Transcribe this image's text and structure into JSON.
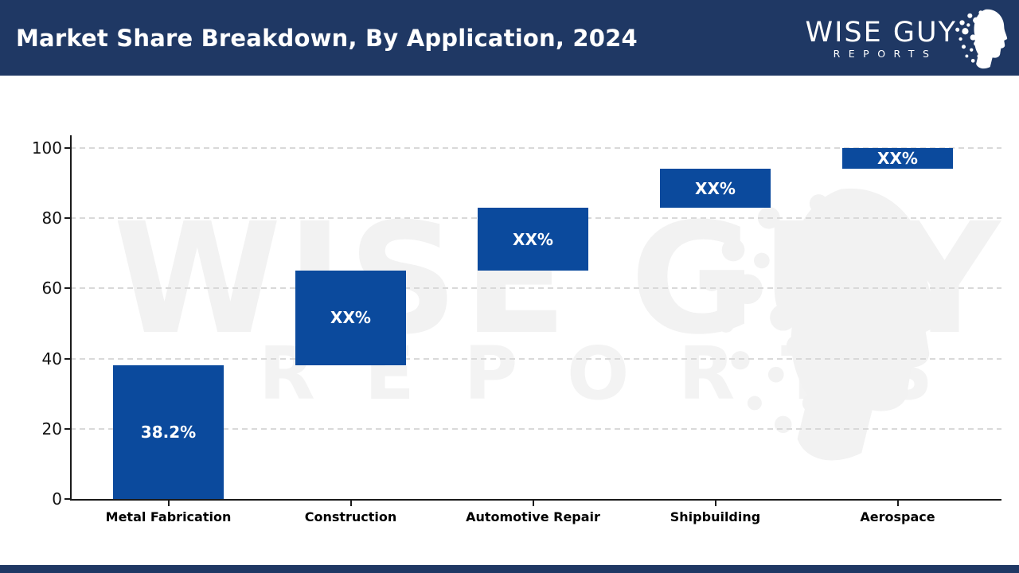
{
  "header": {
    "title": "Market Share Breakdown, By Application, 2024",
    "logo": {
      "line1": "WISE GUY",
      "line2": "REPORTS",
      "icon": "dotted-face-profile"
    }
  },
  "watermark": {
    "line1": "WISE GUY",
    "line2": "REPORTS",
    "icon": "dotted-face-profile"
  },
  "colors": {
    "header_bg": "#1f3864",
    "footer_bg": "#1f3864",
    "bar": "#0b4a9d",
    "bar_label": "#ffffff",
    "gridline": "#d9d9d9",
    "axis": "#1a1a1a",
    "watermark": "#f2f2f2"
  },
  "chart_data": {
    "type": "bar",
    "subtype": "waterfall",
    "title": "Market Share Breakdown, By Application, 2024",
    "categories": [
      "Metal Fabrication",
      "Construction",
      "Automotive Repair",
      "Shipbuilding",
      "Aerospace"
    ],
    "segments": [
      {
        "category": "Metal Fabrication",
        "start": 0,
        "end": 38.2,
        "label": "38.2%"
      },
      {
        "category": "Construction",
        "start": 38.2,
        "end": 65,
        "label": "XX%"
      },
      {
        "category": "Automotive Repair",
        "start": 65,
        "end": 83,
        "label": "XX%"
      },
      {
        "category": "Shipbuilding",
        "start": 83,
        "end": 94,
        "label": "XX%"
      },
      {
        "category": "Aerospace",
        "start": 94,
        "end": 100,
        "label": "XX%"
      }
    ],
    "xlabel": "",
    "ylabel": "",
    "ylim": [
      0,
      100
    ],
    "yticks": [
      0,
      20,
      40,
      60,
      80,
      100
    ],
    "grid": "horizontal-dashed",
    "legend": "none"
  }
}
